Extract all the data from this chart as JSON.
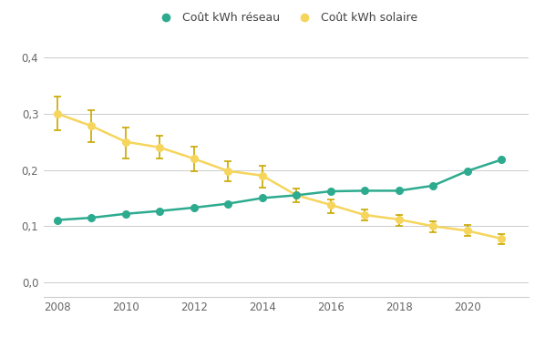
{
  "years": [
    2008,
    2009,
    2010,
    2011,
    2012,
    2013,
    2014,
    2015,
    2016,
    2017,
    2018,
    2019,
    2020,
    2021
  ],
  "reseau_values": [
    0.111,
    0.115,
    0.122,
    0.127,
    0.133,
    0.14,
    0.15,
    0.155,
    0.162,
    0.163,
    0.163,
    0.172,
    0.198,
    0.218
  ],
  "solaire_values": [
    0.3,
    0.278,
    0.25,
    0.24,
    0.22,
    0.198,
    0.19,
    0.155,
    0.138,
    0.12,
    0.112,
    0.1,
    0.092,
    0.078
  ],
  "solaire_yerr_upper": [
    0.03,
    0.028,
    0.025,
    0.02,
    0.022,
    0.018,
    0.018,
    0.012,
    0.01,
    0.01,
    0.008,
    0.008,
    0.01,
    0.008
  ],
  "solaire_yerr_lower": [
    0.03,
    0.028,
    0.03,
    0.02,
    0.022,
    0.018,
    0.022,
    0.012,
    0.015,
    0.01,
    0.012,
    0.01,
    0.01,
    0.01
  ],
  "reseau_color": "#2dab8f",
  "solaire_color": "#f5d55c",
  "solaire_ecolor": "#c8a800",
  "legend_label_reseau": "Coût kWh réseau",
  "legend_label_solaire": "Coût kWh solaire",
  "background_color": "#ffffff",
  "grid_color": "#cccccc",
  "yticks": [
    0.0,
    0.1,
    0.2,
    0.3,
    0.4
  ],
  "ytick_labels": [
    "0,0",
    "0,1",
    "0,2",
    "0,3",
    "0,4"
  ],
  "xticks": [
    2008,
    2010,
    2012,
    2014,
    2016,
    2018,
    2020
  ],
  "ylim": [
    -0.025,
    0.43
  ],
  "xlim": [
    2007.6,
    2021.8
  ],
  "linewidth": 1.8,
  "marker_size": 5.5
}
